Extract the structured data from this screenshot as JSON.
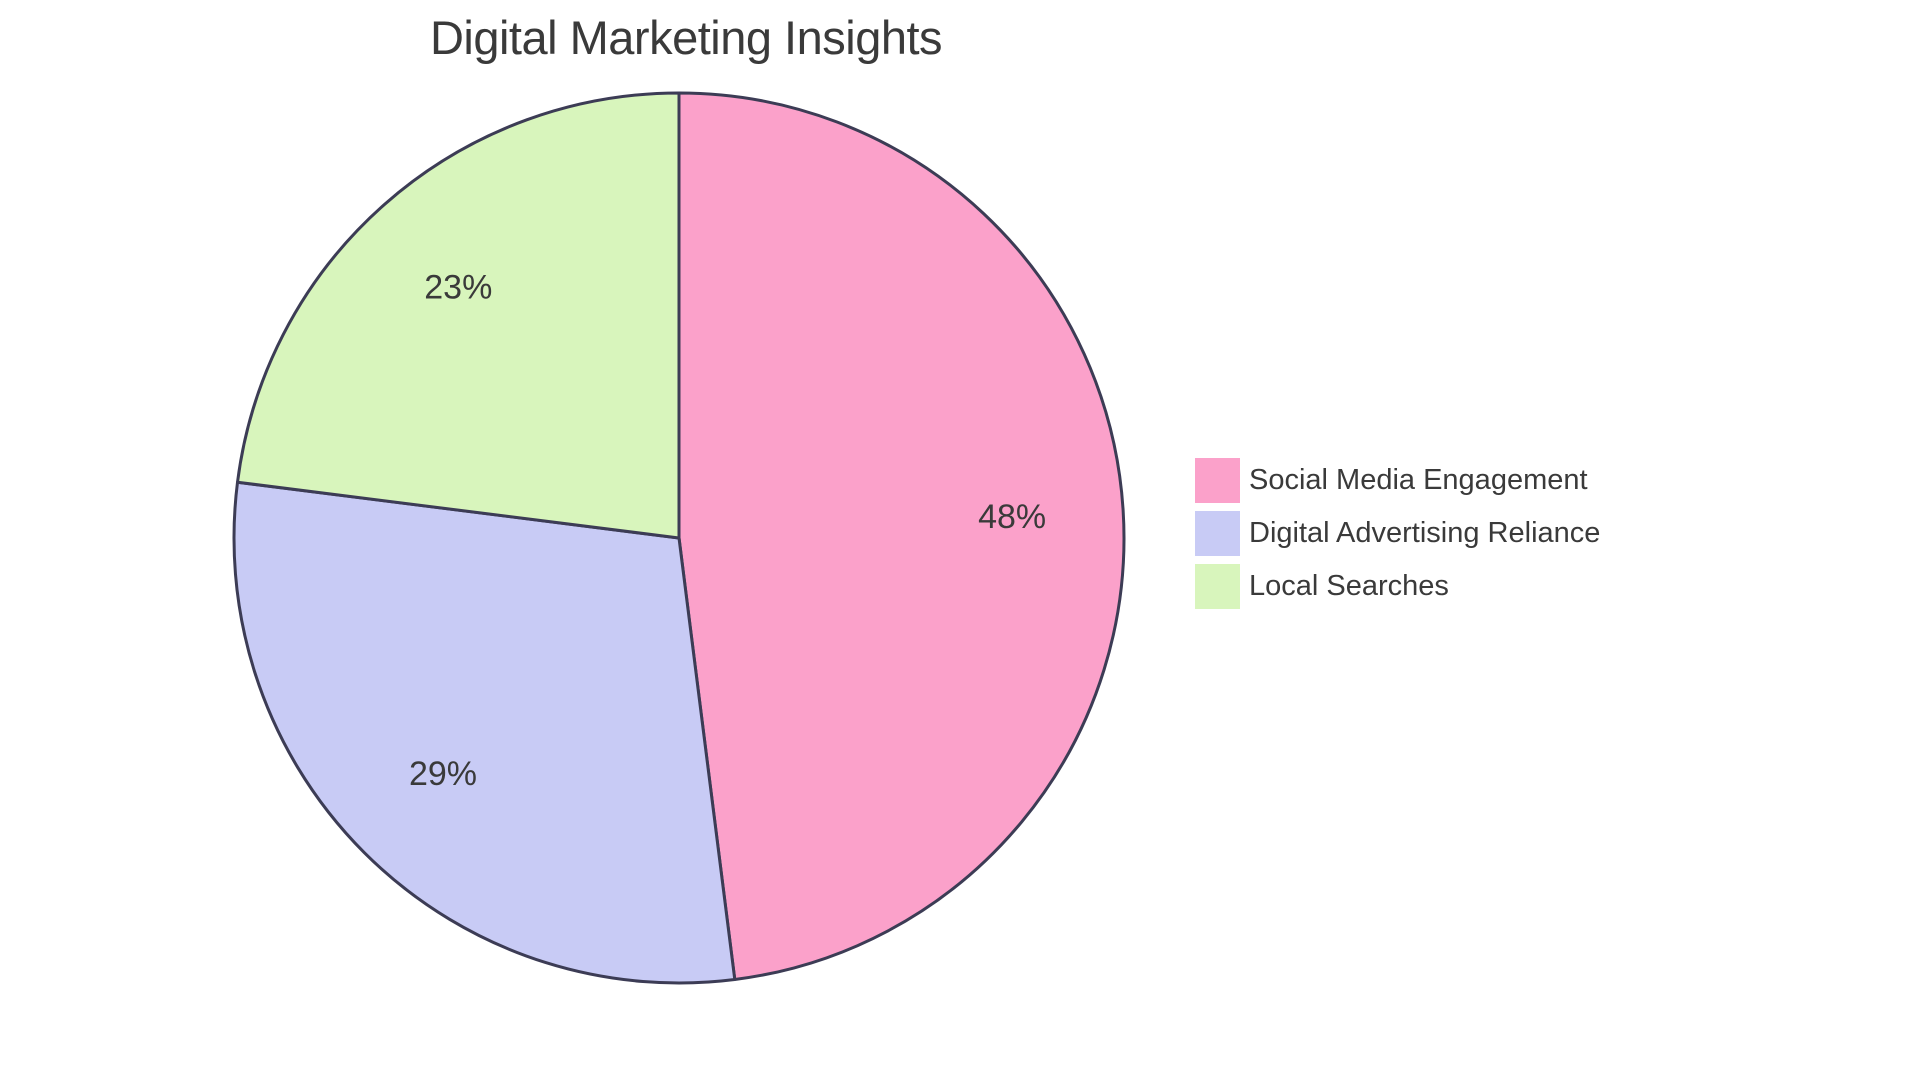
{
  "chart_data": {
    "type": "pie",
    "title": "Digital Marketing Insights",
    "slices": [
      {
        "label": "Social Media Engagement",
        "value": 48,
        "pct_label": "48%",
        "color": "#FBA1CA"
      },
      {
        "label": "Digital Advertising Reliance",
        "value": 29,
        "pct_label": "29%",
        "color": "#C8CBF5"
      },
      {
        "label": "Local Searches",
        "value": 23,
        "pct_label": "23%",
        "color": "#D8F5BC"
      }
    ],
    "start_angle": "top",
    "direction": "clockwise",
    "edge_color": "#3C3C55",
    "edge_width": 3,
    "percent_label_color": "#3A3A3A",
    "text_color": "#3A3A3A",
    "legend_position": "right",
    "background": "#FFFFFF"
  }
}
